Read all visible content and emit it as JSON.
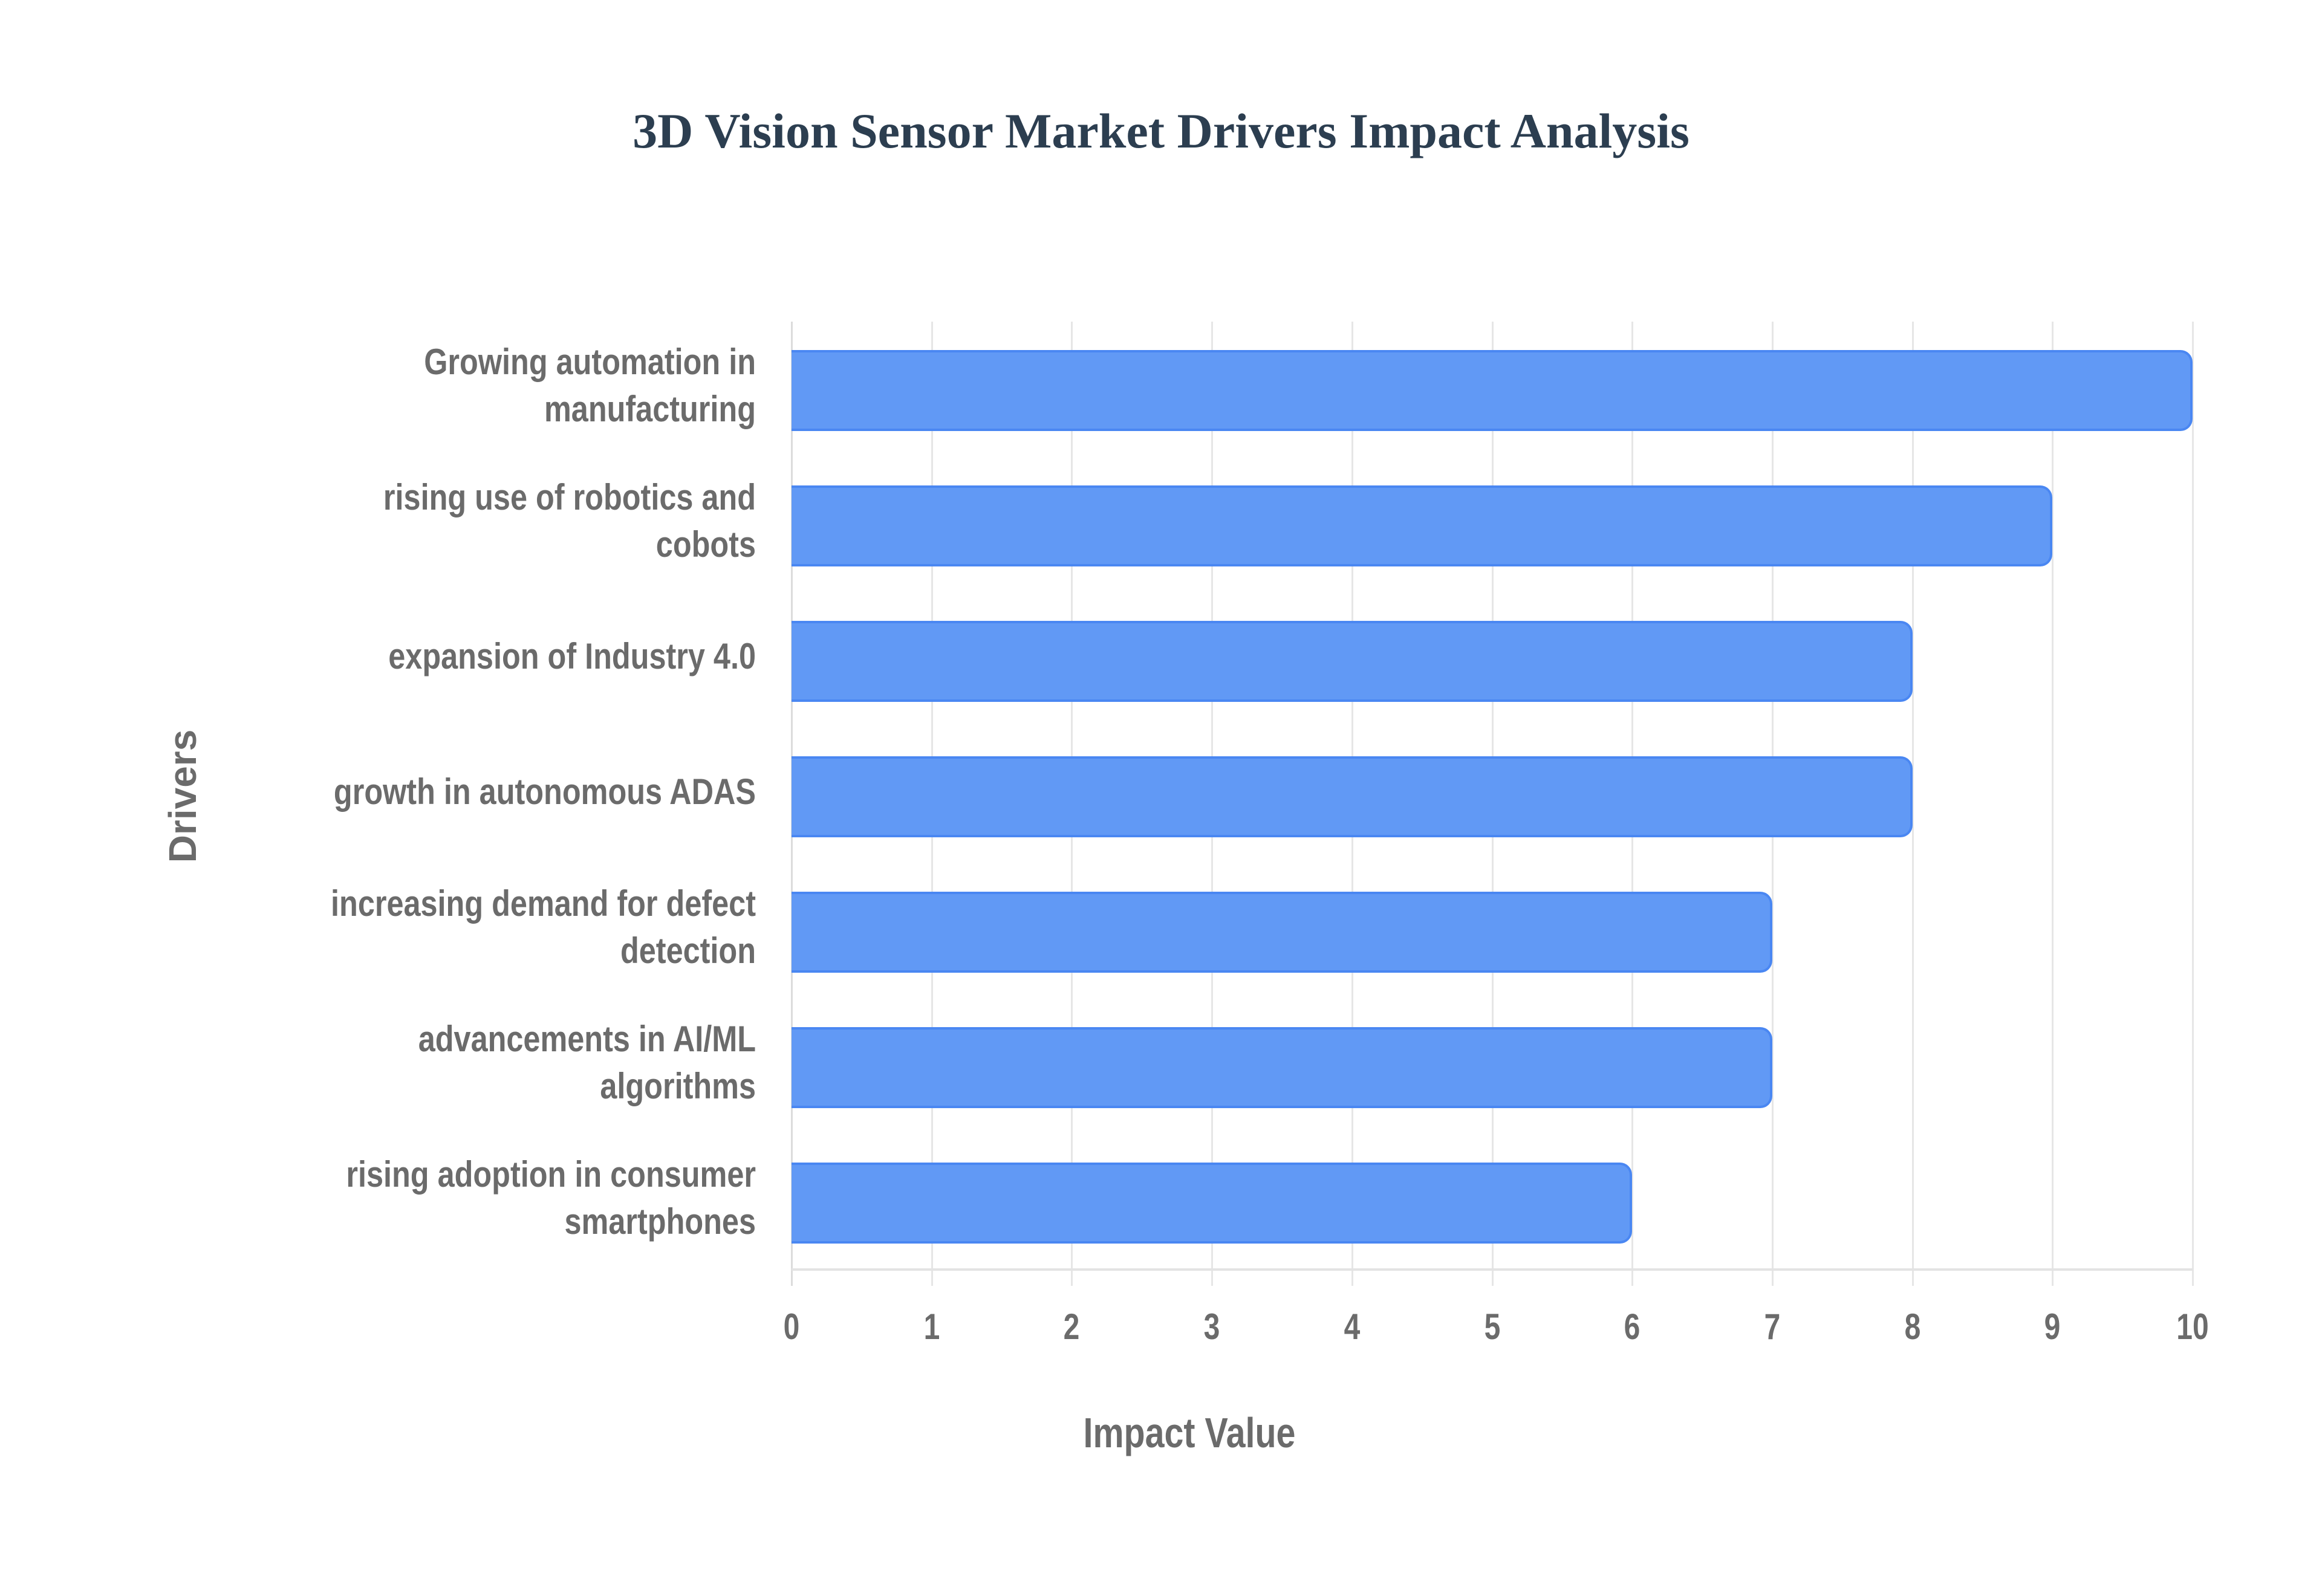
{
  "chart_data": {
    "type": "bar",
    "orientation": "horizontal",
    "title": "3D Vision Sensor Market Drivers Impact Analysis",
    "xlabel": "Impact Value",
    "ylabel": "Drivers",
    "xlim": [
      0,
      10
    ],
    "x_ticks": [
      "0",
      "1",
      "2",
      "3",
      "4",
      "5",
      "6",
      "7",
      "8",
      "9",
      "10"
    ],
    "grid": true,
    "legend": null,
    "bar_color": "#6199f5",
    "bar_border_color": "#4a87f2",
    "categories": [
      [
        "Growing automation in",
        "manufacturing"
      ],
      [
        "rising use of robotics and",
        "cobots"
      ],
      [
        "expansion of Industry 4.0"
      ],
      [
        "growth in autonomous ADAS"
      ],
      [
        "increasing demand for defect",
        "detection"
      ],
      [
        "advancements in AI/ML",
        "algorithms"
      ],
      [
        "rising adoption in consumer",
        "smartphones"
      ]
    ],
    "category_names": [
      "Growing automation in manufacturing",
      "rising use of robotics and cobots",
      "expansion of Industry 4.0",
      "growth in autonomous ADAS",
      "increasing demand for defect detection",
      "advancements in AI/ML algorithms",
      "rising adoption in consumer smartphones"
    ],
    "values": [
      10,
      9,
      8,
      8,
      7,
      7,
      6
    ]
  }
}
